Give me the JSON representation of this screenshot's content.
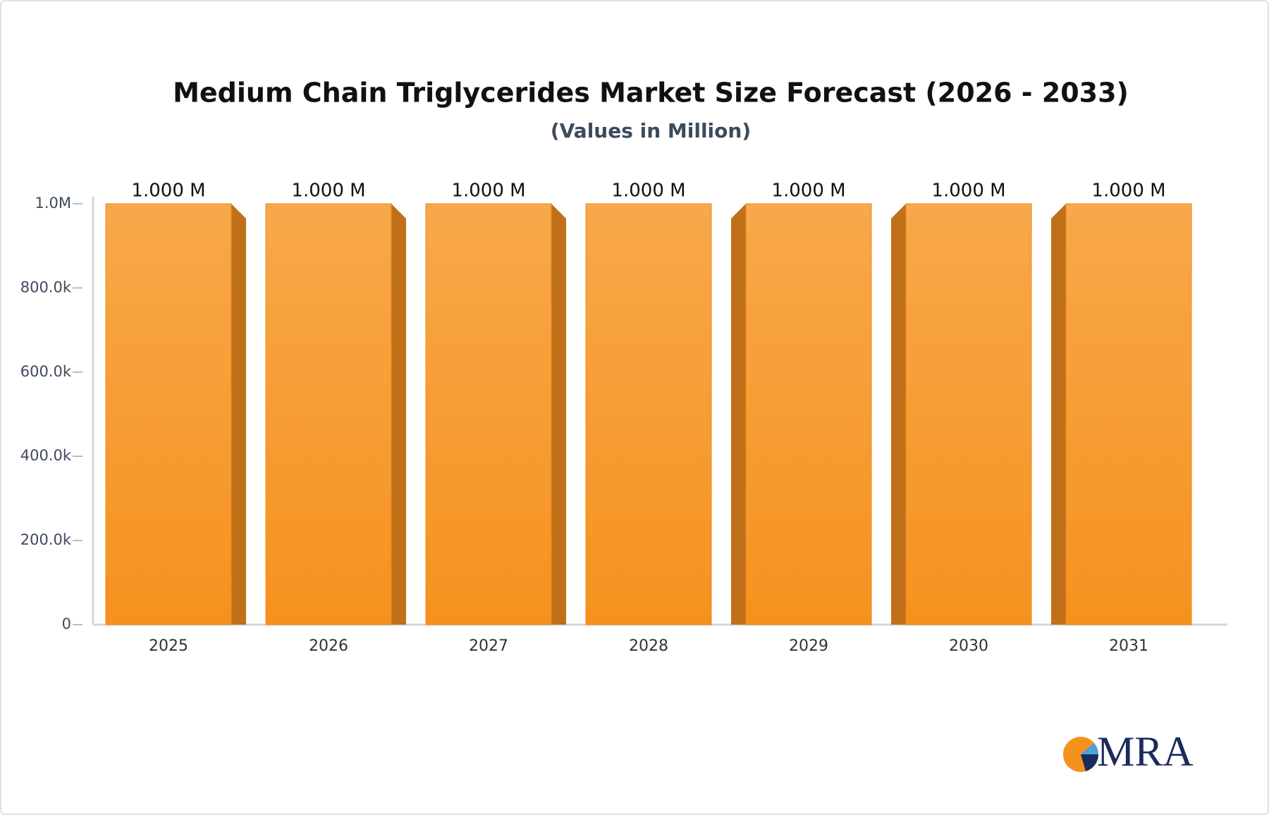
{
  "chart_data": {
    "type": "bar",
    "title": "Medium Chain Triglycerides Market Size Forecast (2026 - 2033)",
    "subtitle": "(Values in Million)",
    "categories": [
      "2025",
      "2026",
      "2027",
      "2028",
      "2029",
      "2030",
      "2031"
    ],
    "values": [
      1000000,
      1000000,
      1000000,
      1000000,
      1000000,
      1000000,
      1000000
    ],
    "value_labels": [
      "1.000 M",
      "1.000 M",
      "1.000 M",
      "1.000 M",
      "1.000 M",
      "1.000 M",
      "1.000 M"
    ],
    "color": "#f7a13a",
    "ylim": [
      0,
      1000000
    ],
    "yticks": [
      0,
      {
        "value": 200000,
        "label": "200.0k"
      },
      {
        "value": 400000,
        "label": "400.0k"
      },
      {
        "value": 600000,
        "label": "600.0k"
      },
      {
        "value": 800000,
        "label": "800.0k"
      },
      {
        "value": 1000000,
        "label": "1.0M"
      }
    ],
    "grid": false
  },
  "logo": "MRA"
}
